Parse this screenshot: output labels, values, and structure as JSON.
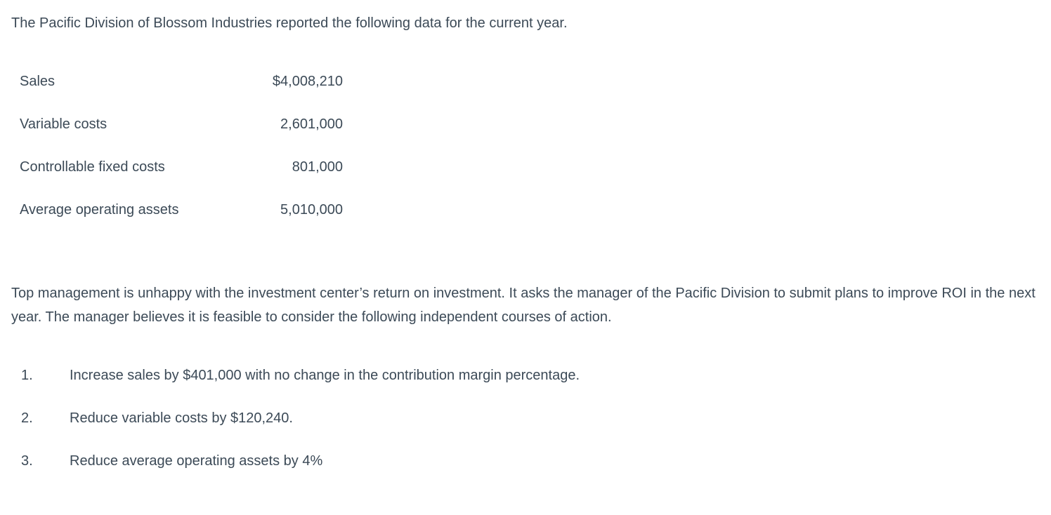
{
  "problem": {
    "intro": "The Pacific Division of Blossom Industries reported the following data for the current year.",
    "data_table": {
      "rows": [
        {
          "label": "Sales",
          "value": "$4,008,210"
        },
        {
          "label": "Variable costs",
          "value": "2,601,000"
        },
        {
          "label": "Controllable fixed costs",
          "value": "801,000"
        },
        {
          "label": "Average operating assets",
          "value": "5,010,000"
        }
      ]
    },
    "paragraph": "Top management is unhappy with the investment center’s return on investment. It asks the manager of the Pacific Division to submit plans to improve ROI in the next year. The manager believes it is feasible to consider the following independent courses of action.",
    "actions": [
      {
        "number": "1.",
        "text": "Increase sales by $401,000 with no change in the contribution margin percentage."
      },
      {
        "number": "2.",
        "text": "Reduce variable costs by $120,240."
      },
      {
        "number": "3.",
        "text": "Reduce average operating assets by 4%"
      }
    ],
    "text_color": "#3c4a57"
  }
}
